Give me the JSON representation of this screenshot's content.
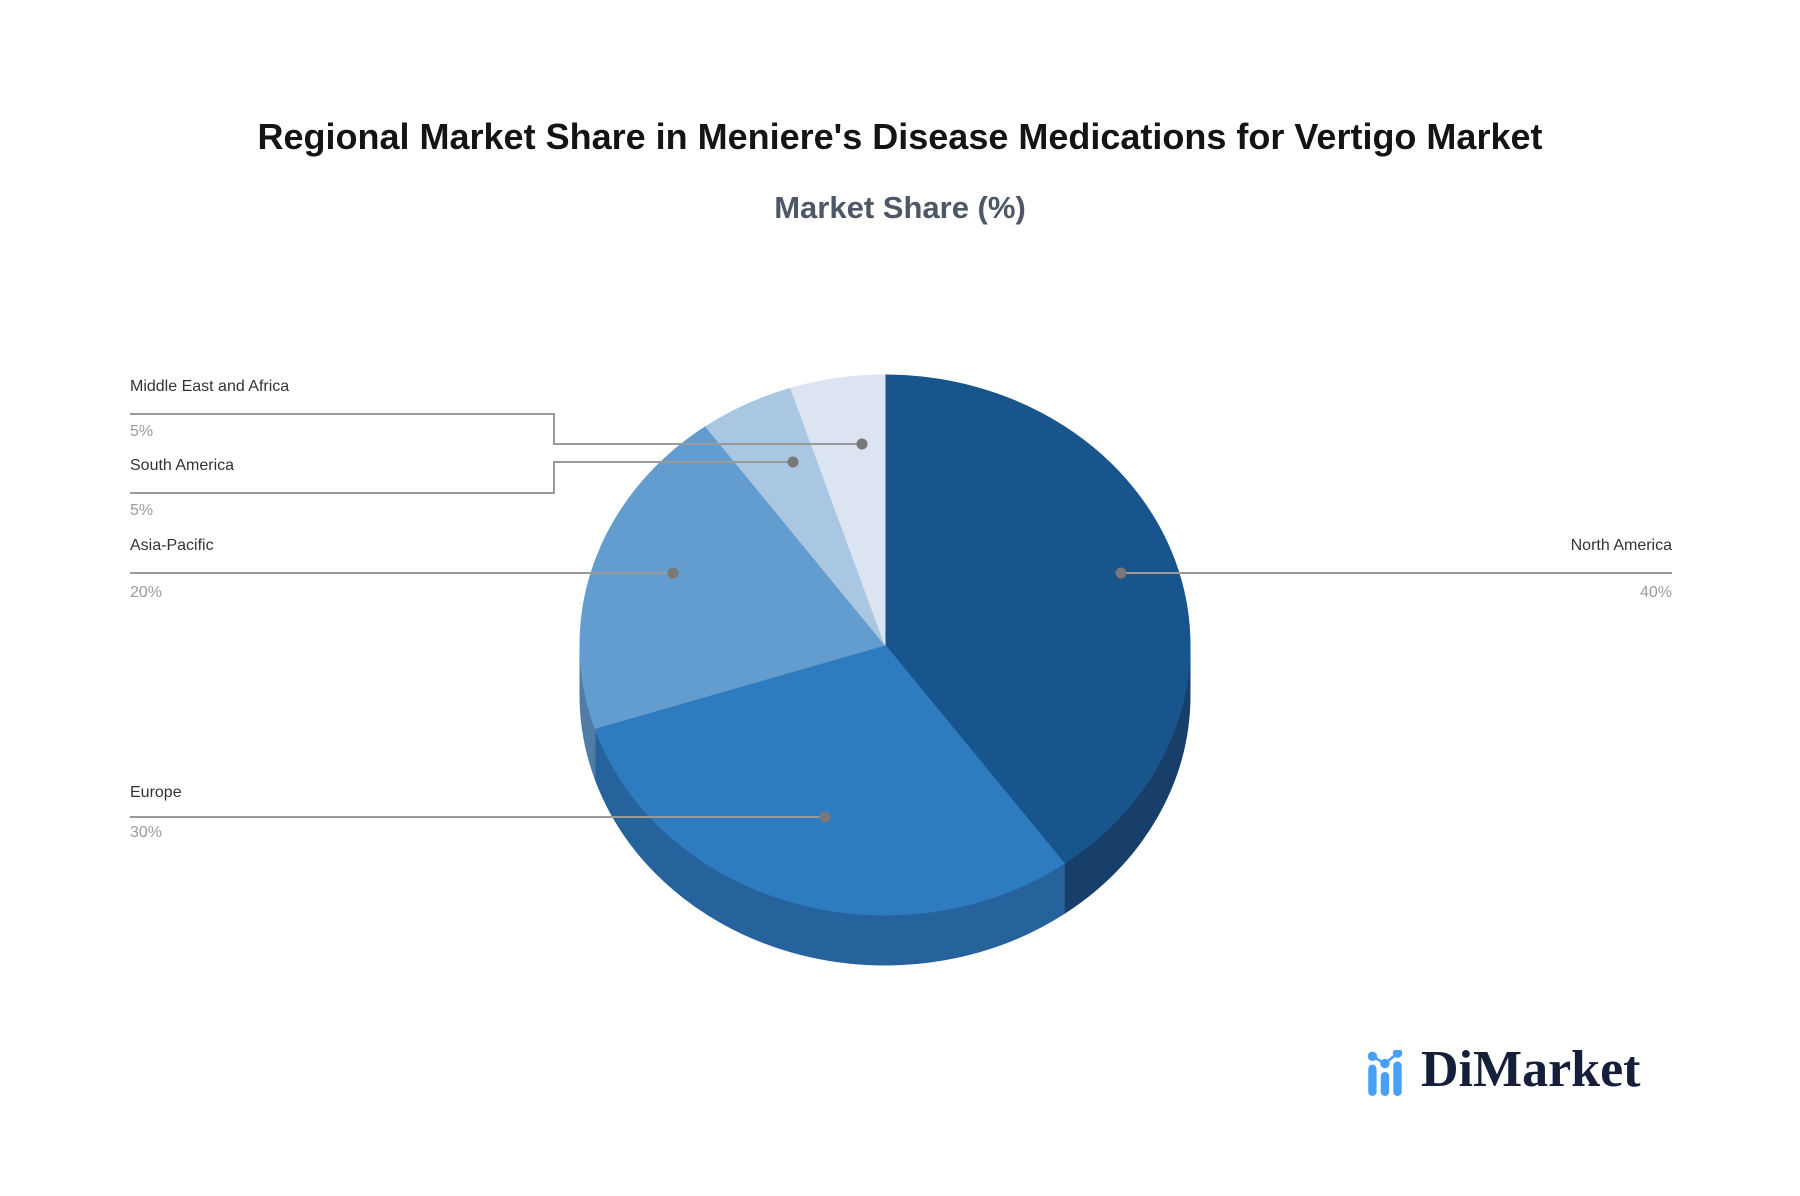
{
  "chart_data": {
    "type": "pie",
    "style": "3d",
    "title": "Regional Market Share in Meniere's Disease Medications for Vertigo Market",
    "subtitle": "Market Share (%)",
    "unit": "%",
    "direction": "clockwise",
    "start_angle_deg": 0,
    "legend_position": "none",
    "labeling": "leader-lines",
    "slices": [
      {
        "label": "North America",
        "value": 40,
        "display": "40%",
        "color": "#19558d",
        "side_color": "#173f69"
      },
      {
        "label": "Europe",
        "value": 30,
        "display": "30%",
        "color": "#2e7bc0",
        "side_color": "#26639c"
      },
      {
        "label": "Asia-Pacific",
        "value": 20,
        "display": "20%",
        "color": "#639cce",
        "side_color": "#4f7da5"
      },
      {
        "label": "South America",
        "value": 5,
        "display": "5%",
        "color": "#a9c6e3",
        "side_color": "#87a9ca"
      },
      {
        "label": "Middle East and Africa",
        "value": 5,
        "display": "5%",
        "color": "#dbe4f0",
        "side_color": "#b9c7d8"
      }
    ],
    "leader_line_color": "#9a9a9a",
    "leader_dot_color": "#787878",
    "label_color": "#333333",
    "value_color": "#9b9b9b",
    "title_color": "#141414",
    "subtitle_color": "#4c5866"
  },
  "branding": {
    "name": "DiMarket",
    "icon": "bar-line-chart-icon",
    "text_color": "#161f3a",
    "icon_color": "#47a0f4"
  }
}
